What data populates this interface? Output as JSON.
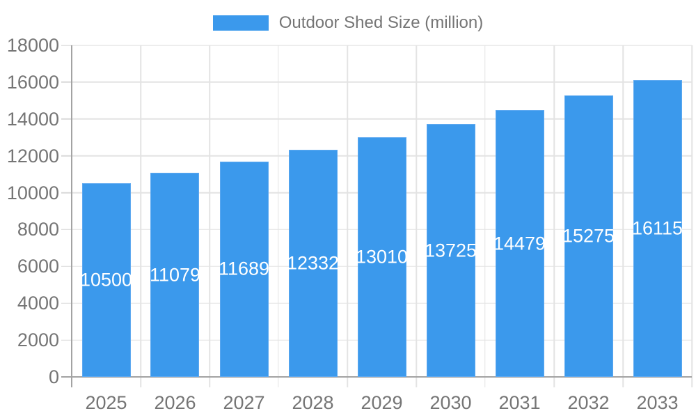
{
  "legend": {
    "label": "Outdoor Shed Size (million)"
  },
  "colors": {
    "bar": "#3b99ec",
    "bar_border": "#5ea9f0",
    "grid": "#e3e3e3",
    "axis": "#a3a3a3",
    "tick_text": "#757575",
    "bar_label_text": "#ffffff",
    "background": "#ffffff"
  },
  "chart_data": {
    "type": "bar",
    "title": "Outdoor Shed Size (million)",
    "categories": [
      "2025",
      "2026",
      "2027",
      "2028",
      "2029",
      "2030",
      "2031",
      "2032",
      "2033"
    ],
    "values": [
      10500,
      11079,
      11689,
      12332,
      13010,
      13725,
      14479,
      15275,
      16115
    ],
    "bar_labels": [
      "10500",
      "11079",
      "11689",
      "12332",
      "13010",
      "13725",
      "14479",
      "15275",
      "16115"
    ],
    "xlabel": "",
    "ylabel": "",
    "ylim": [
      0,
      18000
    ],
    "ytick_step": 2000,
    "ytick_labels": [
      "0",
      "2000",
      "4000",
      "6000",
      "8000",
      "10000",
      "12000",
      "14000",
      "16000",
      "18000"
    ],
    "grid": true,
    "legend_position": "top",
    "bar_label_position": "middle"
  }
}
